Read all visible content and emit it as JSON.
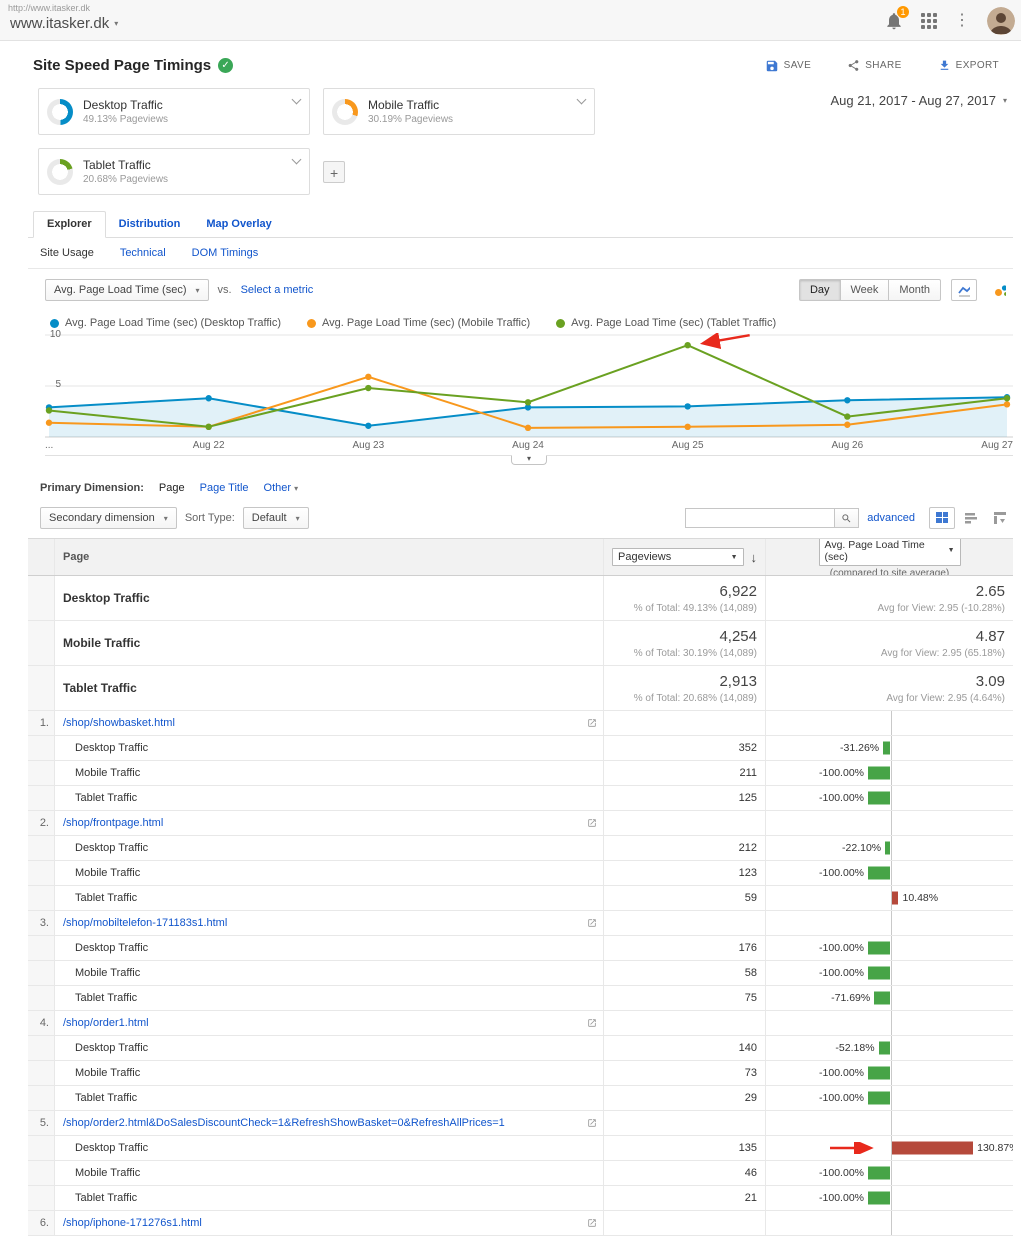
{
  "colors": {
    "series_desktop": "#058dc7",
    "series_mobile": "#f8981d",
    "series_tablet": "#6aa121",
    "bar_negative_green": "#47a447",
    "bar_positive_red": "#b5493b",
    "link_blue": "#1155cc",
    "annotation_red": "#e8291c",
    "badge_orange": "#ff9800",
    "check_green": "#3aa757"
  },
  "topbar": {
    "url": "http://www.itasker.dk",
    "site_name": "www.itasker.dk",
    "notification_count": "1"
  },
  "report_header": {
    "title": "Site Speed Page Timings",
    "save_label": "SAVE",
    "share_label": "SHARE",
    "export_label": "EXPORT",
    "date_range": "Aug 21, 2017 - Aug 27, 2017"
  },
  "segments": [
    {
      "name": "Desktop Traffic",
      "subtitle": "49.13% Pageviews",
      "pct": 49.13,
      "color": "#058dc7"
    },
    {
      "name": "Mobile Traffic",
      "subtitle": "30.19% Pageviews",
      "pct": 30.19,
      "color": "#f8981d"
    },
    {
      "name": "Tablet Traffic",
      "subtitle": "20.68% Pageviews",
      "pct": 20.68,
      "color": "#6aa121"
    }
  ],
  "add_segment_label": "+",
  "tabs": [
    {
      "label": "Explorer",
      "active": true
    },
    {
      "label": "Distribution",
      "active": false
    },
    {
      "label": "Map Overlay",
      "active": false
    }
  ],
  "subtabs": [
    {
      "label": "Site Usage",
      "active": true
    },
    {
      "label": "Technical",
      "active": false
    },
    {
      "label": "DOM Timings",
      "active": false
    }
  ],
  "metric_bar": {
    "metric_dropdown": "Avg. Page Load Time (sec)",
    "vs_label": "vs.",
    "select_metric": "Select a metric",
    "granularity": [
      "Day",
      "Week",
      "Month"
    ],
    "active_granularity": "Day"
  },
  "chart_data": {
    "type": "line",
    "x": [
      "Aug 21",
      "Aug 22",
      "Aug 23",
      "Aug 24",
      "Aug 25",
      "Aug 26",
      "Aug 27"
    ],
    "x_tick_labels": [
      "...",
      "Aug 22",
      "Aug 23",
      "Aug 24",
      "Aug 25",
      "Aug 26",
      "Aug 27"
    ],
    "ylim": [
      0,
      10
    ],
    "yticks": [
      5,
      10
    ],
    "legend_position": "top",
    "grid": true,
    "series": [
      {
        "name": "Avg. Page Load Time (sec) (Desktop Traffic)",
        "color": "#058dc7",
        "area": true,
        "values": [
          2.9,
          3.8,
          1.1,
          2.9,
          3.0,
          3.6,
          3.9
        ]
      },
      {
        "name": "Avg. Page Load Time (sec) (Mobile Traffic)",
        "color": "#f8981d",
        "area": false,
        "values": [
          1.4,
          1.0,
          5.9,
          0.9,
          1.0,
          1.2,
          3.2
        ]
      },
      {
        "name": "Avg. Page Load Time (sec) (Tablet Traffic)",
        "color": "#6aa121",
        "area": false,
        "values": [
          2.6,
          1.0,
          4.8,
          3.4,
          9.0,
          2.0,
          3.8
        ]
      }
    ],
    "annotation": {
      "type": "arrow",
      "target": "Tablet Traffic peak on Aug 25"
    }
  },
  "dimension_bar": {
    "label": "Primary Dimension:",
    "active": "Page",
    "links": [
      "Page Title",
      "Other"
    ]
  },
  "table_toolbar": {
    "secondary_dimension": "Secondary dimension",
    "sort_type_label": "Sort Type:",
    "sort_type_value": "Default",
    "advanced_label": "advanced"
  },
  "table": {
    "columns": {
      "page": "Page",
      "pageviews": "Pageviews",
      "metric": "Avg. Page Load Time (sec)",
      "metric_note": "(compared to site average)"
    },
    "summary_rows": [
      {
        "name": "Desktop Traffic",
        "pageviews": "6,922",
        "pageviews_note": "% of Total: 49.13% (14,089)",
        "metric": "2.65",
        "metric_note": "Avg for View: 2.95 (-10.28%)"
      },
      {
        "name": "Mobile Traffic",
        "pageviews": "4,254",
        "pageviews_note": "% of Total: 30.19% (14,089)",
        "metric": "4.87",
        "metric_note": "Avg for View: 2.95 (65.18%)"
      },
      {
        "name": "Tablet Traffic",
        "pageviews": "2,913",
        "pageviews_note": "% of Total: 20.68% (14,089)",
        "metric": "3.09",
        "metric_note": "Avg for View: 2.95 (4.64%)"
      }
    ],
    "rows": [
      {
        "num": "1.",
        "page": "/shop/showbasket.html",
        "segments": [
          {
            "name": "Desktop Traffic",
            "pageviews": "352",
            "delta_pct": -31.26,
            "delta_label": "-31.26%"
          },
          {
            "name": "Mobile Traffic",
            "pageviews": "211",
            "delta_pct": -100.0,
            "delta_label": "-100.00%"
          },
          {
            "name": "Tablet Traffic",
            "pageviews": "125",
            "delta_pct": -100.0,
            "delta_label": "-100.00%"
          }
        ]
      },
      {
        "num": "2.",
        "page": "/shop/frontpage.html",
        "segments": [
          {
            "name": "Desktop Traffic",
            "pageviews": "212",
            "delta_pct": -22.1,
            "delta_label": "-22.10%"
          },
          {
            "name": "Mobile Traffic",
            "pageviews": "123",
            "delta_pct": -100.0,
            "delta_label": "-100.00%"
          },
          {
            "name": "Tablet Traffic",
            "pageviews": "59",
            "delta_pct": 10.48,
            "delta_label": "10.48%"
          }
        ]
      },
      {
        "num": "3.",
        "page": "/shop/mobiltelefon-171183s1.html",
        "segments": [
          {
            "name": "Desktop Traffic",
            "pageviews": "176",
            "delta_pct": -100.0,
            "delta_label": "-100.00%"
          },
          {
            "name": "Mobile Traffic",
            "pageviews": "58",
            "delta_pct": -100.0,
            "delta_label": "-100.00%"
          },
          {
            "name": "Tablet Traffic",
            "pageviews": "75",
            "delta_pct": -71.69,
            "delta_label": "-71.69%"
          }
        ]
      },
      {
        "num": "4.",
        "page": "/shop/order1.html",
        "segments": [
          {
            "name": "Desktop Traffic",
            "pageviews": "140",
            "delta_pct": -52.18,
            "delta_label": "-52.18%"
          },
          {
            "name": "Mobile Traffic",
            "pageviews": "73",
            "delta_pct": -100.0,
            "delta_label": "-100.00%"
          },
          {
            "name": "Tablet Traffic",
            "pageviews": "29",
            "delta_pct": -100.0,
            "delta_label": "-100.00%"
          }
        ]
      },
      {
        "num": "5.",
        "page": "/shop/order2.html&DoSalesDiscountCheck=1&RefreshShowBasket=0&RefreshAllPrices=1",
        "segments": [
          {
            "name": "Desktop Traffic",
            "pageviews": "135",
            "delta_pct": 130.87,
            "delta_label": "130.87%",
            "annotation_arrow": true
          },
          {
            "name": "Mobile Traffic",
            "pageviews": "46",
            "delta_pct": -100.0,
            "delta_label": "-100.00%"
          },
          {
            "name": "Tablet Traffic",
            "pageviews": "21",
            "delta_pct": -100.0,
            "delta_label": "-100.00%"
          }
        ]
      },
      {
        "num": "6.",
        "page": "/shop/iphone-171276s1.html",
        "segments": []
      }
    ]
  }
}
